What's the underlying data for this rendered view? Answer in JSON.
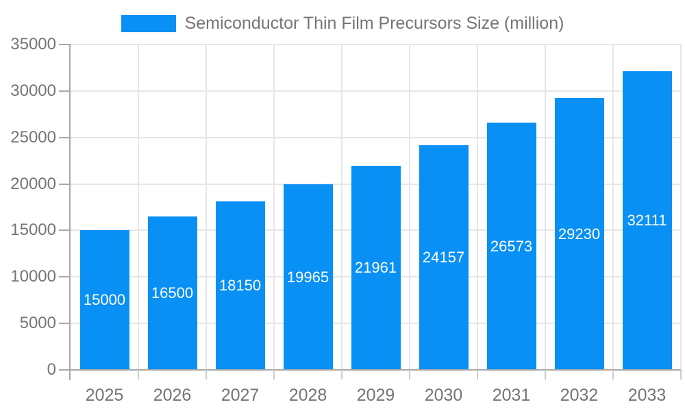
{
  "chart_data": {
    "type": "bar",
    "title": "Semiconductor Thin Film Precursors Size (million)",
    "categories": [
      "2025",
      "2026",
      "2027",
      "2028",
      "2029",
      "2030",
      "2031",
      "2032",
      "2033"
    ],
    "values": [
      15000,
      16500,
      18150,
      19965,
      21961,
      24157,
      26573,
      29230,
      32111
    ],
    "xlabel": "",
    "ylabel": "",
    "ylim": [
      0,
      35000
    ],
    "ytick_step": 5000,
    "yticks": [
      0,
      5000,
      10000,
      15000,
      20000,
      25000,
      30000,
      35000
    ],
    "grid": true,
    "legend_position": "top",
    "bar_color": "#0890F5",
    "bar_label_color": "#FFFFFF",
    "axis_label_color": "#757575",
    "gridline_color": "#E6E6E6",
    "axis_line_color": "#A8A8A8",
    "tick_color": "#CCCCCC",
    "background_color": "#FFFFFF"
  },
  "legend": {
    "label": "Semiconductor Thin Film Precursors Size (million)"
  }
}
